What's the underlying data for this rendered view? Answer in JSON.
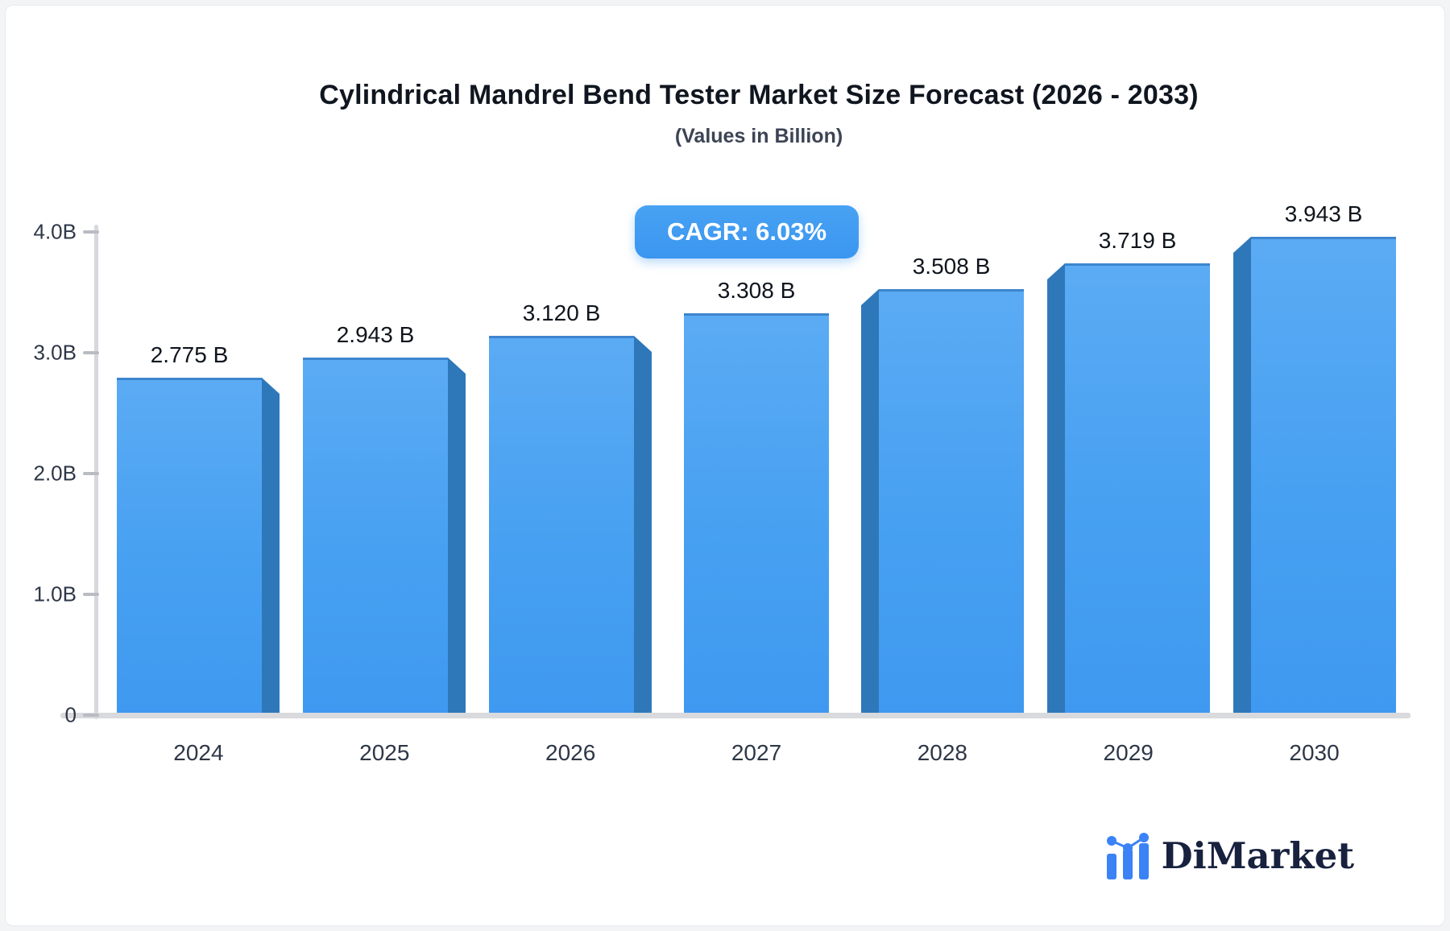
{
  "header": {
    "title": "Cylindrical Mandrel Bend Tester Market Size Forecast (2026 - 2033)",
    "subtitle": "(Values in Billion)"
  },
  "badge": {
    "label": "CAGR: 6.03%"
  },
  "footer": {
    "brand": "DiMarket"
  },
  "colors": {
    "accent_blue": "#409df3",
    "bar_front_top": "#5babf4",
    "bar_front_bottom": "#3f99f0",
    "bar_side": "#2e78ba",
    "bar_top_edge": "#3d85ce",
    "axis_gray": "#d6d8dc",
    "text_dark": "#10161f",
    "logo_navy": "#18223f",
    "logo_blue": "#3b82f6"
  },
  "chart_data": {
    "type": "bar",
    "title": "Cylindrical Mandrel Bend Tester Market Size Forecast (2026 - 2033)",
    "subtitle": "(Values in Billion)",
    "categories": [
      "2024",
      "2025",
      "2026",
      "2027",
      "2028",
      "2029",
      "2030"
    ],
    "values": [
      2.775,
      2.943,
      3.12,
      3.308,
      3.508,
      3.719,
      3.943
    ],
    "value_labels": [
      "2.775 B",
      "2.943 B",
      "3.120 B",
      "3.308 B",
      "3.508 B",
      "3.719 B",
      "3.943 B"
    ],
    "cagr": "CAGR: 6.03%",
    "xlabel": "",
    "ylabel": "",
    "ylim": [
      0,
      4
    ],
    "yticks": [
      {
        "label": "4.0B",
        "value": 4.0
      },
      {
        "label": "3.0B",
        "value": 3.0
      },
      {
        "label": "2.0B",
        "value": 2.0
      },
      {
        "label": "1.0B",
        "value": 1.0
      },
      {
        "label": "0",
        "value": 0.0
      }
    ],
    "grid": false,
    "legend": false,
    "style": "pseudo-3d bars, side shading faces away from center; flat center bar"
  }
}
